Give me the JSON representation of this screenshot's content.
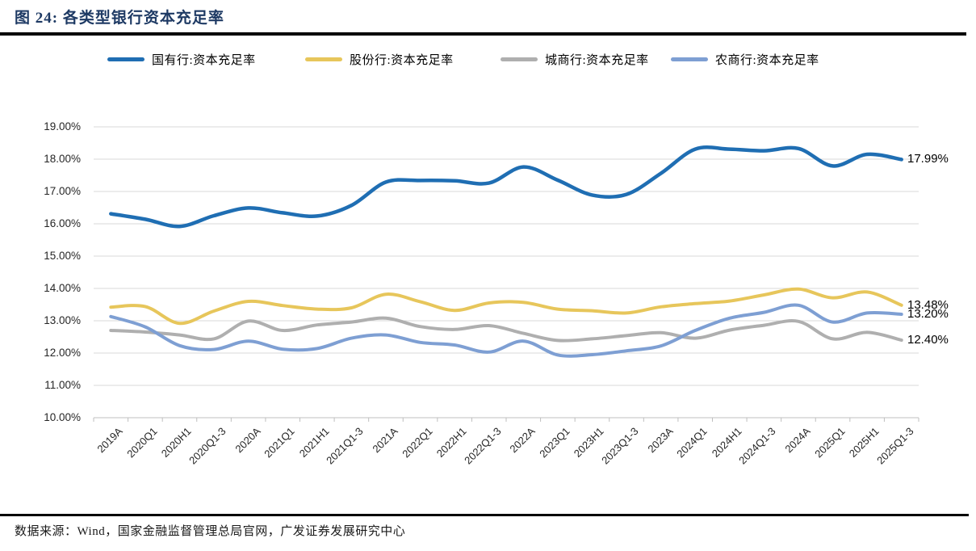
{
  "header": {
    "title": "图 24:  各类型银行资本充足率"
  },
  "source": {
    "text": "数据来源：Wind，国家金融监督管理总局官网，广发证券发展研究中心"
  },
  "colors": {
    "state_owned": "#1f6eb3",
    "joint_stock": "#e7c65b",
    "city_commercial": "#afafaf",
    "rural_commercial": "#7e9fd3",
    "gridline": "#d9d9d9",
    "axis": "#bfbfbf",
    "title": "#1e3a64",
    "rule": "#000000"
  },
  "chart_data": {
    "type": "line",
    "title": "各类型银行资本充足率",
    "xlabel": "",
    "ylabel": "",
    "ylim": [
      10,
      19
    ],
    "ytick_step": 1,
    "yticks": [
      "19.00%",
      "18.00%",
      "17.00%",
      "16.00%",
      "15.00%",
      "14.00%",
      "13.00%",
      "12.00%",
      "11.00%",
      "10.00%"
    ],
    "grid": true,
    "legend_position": "top",
    "line_style": "smooth",
    "categories": [
      "2019A",
      "2020Q1",
      "2020H1",
      "2020Q1-3",
      "2020A",
      "2021Q1",
      "2021H1",
      "2021Q1-3",
      "2021A",
      "2022Q1",
      "2022H1",
      "2022Q1-3",
      "2022A",
      "2023Q1",
      "2023H1",
      "2023Q1-3",
      "2023A",
      "2024Q1",
      "2024H1",
      "2024Q1-3",
      "2024A",
      "2025Q1",
      "2025H1",
      "2025Q1-3"
    ],
    "series": [
      {
        "name": "国有行:资本充足率",
        "color": "#1f6eb3",
        "end_label": "17.99%",
        "values": [
          16.31,
          16.14,
          15.92,
          16.25,
          16.49,
          16.34,
          16.24,
          16.57,
          17.29,
          17.34,
          17.33,
          17.26,
          17.76,
          17.35,
          16.89,
          16.91,
          17.56,
          18.31,
          18.31,
          18.26,
          18.33,
          17.79,
          18.15,
          17.99
        ]
      },
      {
        "name": "股份行:资本充足率",
        "color": "#e7c65b",
        "end_label": "13.48%",
        "values": [
          13.42,
          13.44,
          12.92,
          13.3,
          13.6,
          13.47,
          13.36,
          13.4,
          13.82,
          13.59,
          13.32,
          13.55,
          13.57,
          13.36,
          13.31,
          13.24,
          13.43,
          13.53,
          13.61,
          13.8,
          13.98,
          13.71,
          13.89,
          13.48
        ]
      },
      {
        "name": "城商行:资本充足率",
        "color": "#afafaf",
        "end_label": "12.40%",
        "values": [
          12.7,
          12.65,
          12.56,
          12.44,
          12.99,
          12.7,
          12.87,
          12.96,
          13.08,
          12.82,
          12.73,
          12.85,
          12.61,
          12.39,
          12.44,
          12.54,
          12.63,
          12.46,
          12.71,
          12.86,
          12.98,
          12.44,
          12.64,
          12.4
        ]
      },
      {
        "name": "农商行:资本充足率",
        "color": "#7e9fd3",
        "end_label": "13.20%",
        "values": [
          13.13,
          12.81,
          12.23,
          12.11,
          12.37,
          12.12,
          12.14,
          12.46,
          12.56,
          12.33,
          12.25,
          12.03,
          12.37,
          11.94,
          11.95,
          12.07,
          12.22,
          12.7,
          13.08,
          13.26,
          13.48,
          12.96,
          13.24,
          13.2
        ]
      }
    ]
  }
}
